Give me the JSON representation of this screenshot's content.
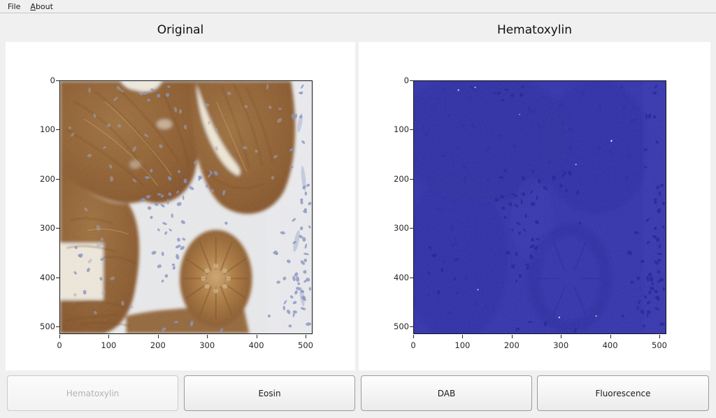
{
  "menu": {
    "items": [
      {
        "label": "File",
        "underline": null
      },
      {
        "label": "About",
        "underline": 0
      }
    ]
  },
  "panels": [
    {
      "title": "Original"
    },
    {
      "title": "Hematoxylin"
    }
  ],
  "plot": {
    "x_ticks": [
      "0",
      "100",
      "200",
      "300",
      "400",
      "500"
    ],
    "y_ticks": [
      "0",
      "100",
      "200",
      "300",
      "400",
      "500"
    ],
    "axis_range": [
      0,
      500
    ]
  },
  "buttons": [
    {
      "label": "Hematoxylin",
      "enabled": false
    },
    {
      "label": "Eosin",
      "enabled": true
    },
    {
      "label": "DAB",
      "enabled": true
    },
    {
      "label": "Fluorescence",
      "enabled": true
    }
  ],
  "colors": {
    "window_bg": "#f0f0f0",
    "panel_bg": "#ffffff",
    "stain_brown": "#8a5626",
    "stroma_pale": "#eceef2",
    "nucleus_blue": "#7f90c2",
    "hema_base": "#3131a7",
    "hema_nucleus": "#1d1e8f",
    "disabled_text": "#b3b3b3",
    "tick_text": "#262626"
  }
}
